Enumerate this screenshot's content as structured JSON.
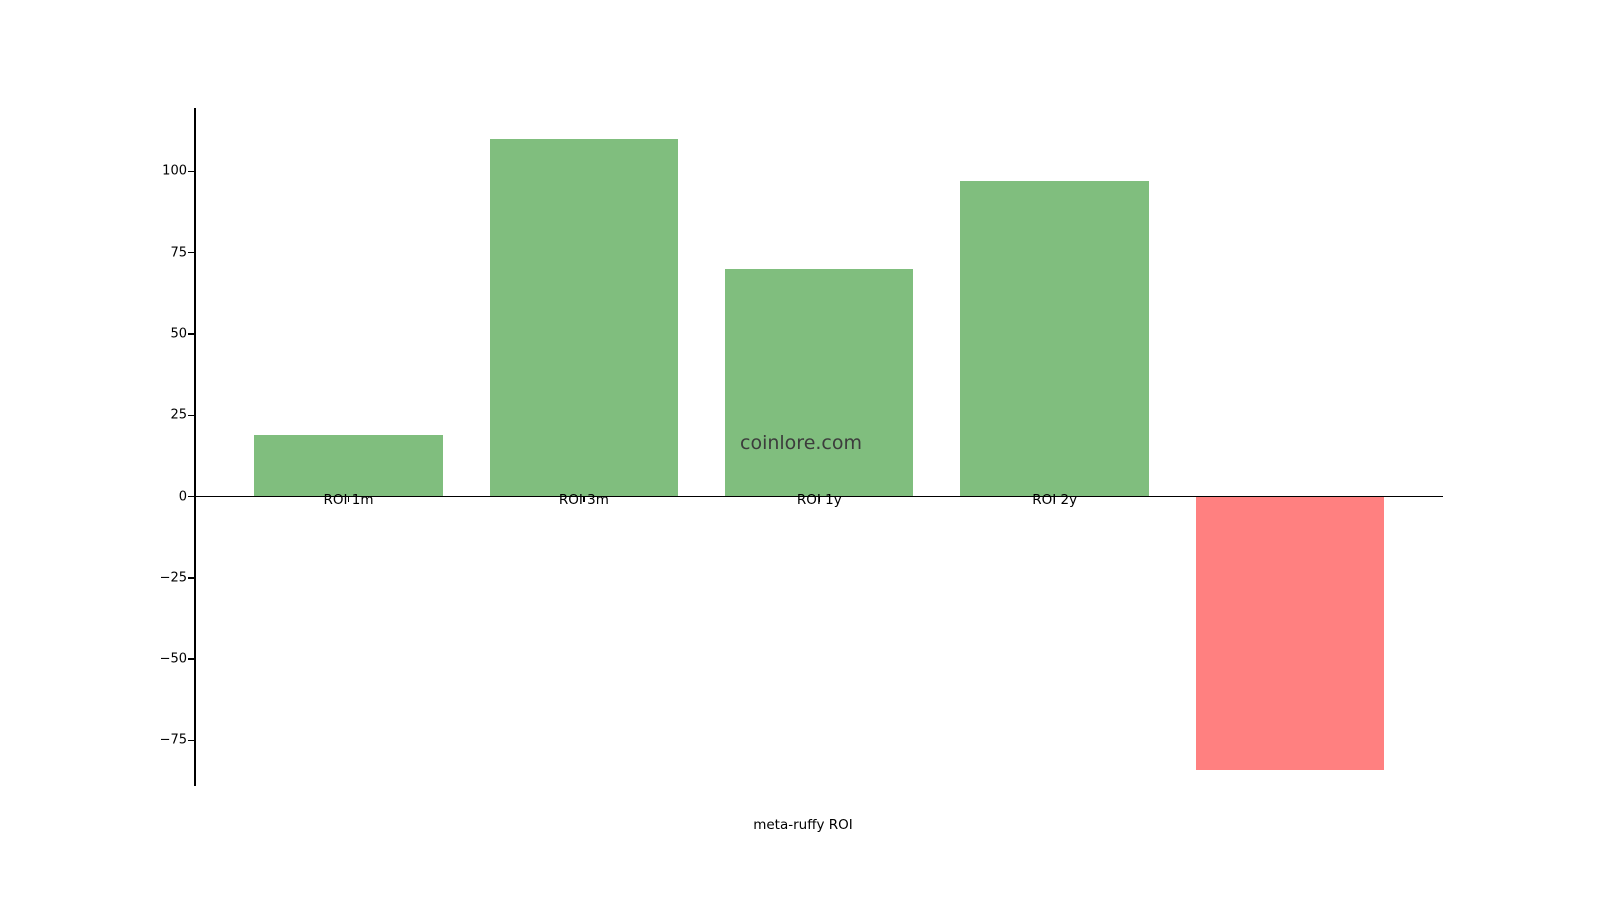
{
  "watermark": {
    "text": "coinlore.com",
    "color": "#3c3c3c"
  },
  "chart_data": {
    "type": "bar",
    "title": "meta-ruffy ROI",
    "categories": [
      "ROI 1m",
      "ROI 3m",
      "ROI 1y",
      "ROI 2y",
      ""
    ],
    "values": [
      19,
      110,
      70,
      97,
      -84
    ],
    "positive_color": "#80be7e",
    "negative_color": "#ff8080",
    "axis_color": "#000000",
    "text_color": "#000000",
    "yticks": [
      100,
      75,
      50,
      25,
      0,
      -25,
      -50,
      -75
    ],
    "ylim": [
      -89,
      119.5
    ],
    "xlabel": "",
    "ylabel": "",
    "grid": false,
    "legend": "none"
  }
}
